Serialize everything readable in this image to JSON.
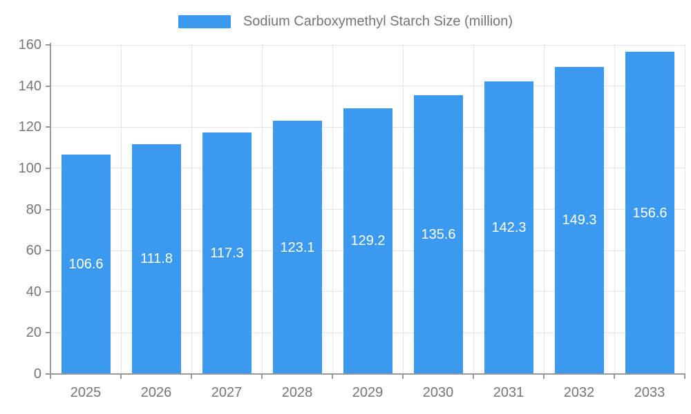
{
  "legend": {
    "label": "Sodium Carboxymethyl Starch Size (million)"
  },
  "colors": {
    "bar": "#3b9af0",
    "axis": "#999999",
    "grid": "#e5e5e5",
    "tick_text": "#757575",
    "value_label_text": "#ffffff",
    "background": "#ffffff"
  },
  "chart_data": {
    "type": "bar",
    "title": "Sodium Carboxymethyl Starch Size (million)",
    "categories": [
      "2025",
      "2026",
      "2027",
      "2028",
      "2029",
      "2030",
      "2031",
      "2032",
      "2033"
    ],
    "values": [
      106.6,
      111.8,
      117.3,
      123.1,
      129.2,
      135.6,
      142.3,
      149.3,
      156.6
    ],
    "series_name": "Sodium Carboxymethyl Starch Size (million)",
    "xlabel": "",
    "ylabel": "",
    "ylim": [
      0,
      160
    ],
    "yticks": [
      0,
      20,
      40,
      60,
      80,
      100,
      120,
      140,
      160
    ],
    "grid": true,
    "legend_position": "top-center",
    "value_label_position": "inside-center"
  }
}
